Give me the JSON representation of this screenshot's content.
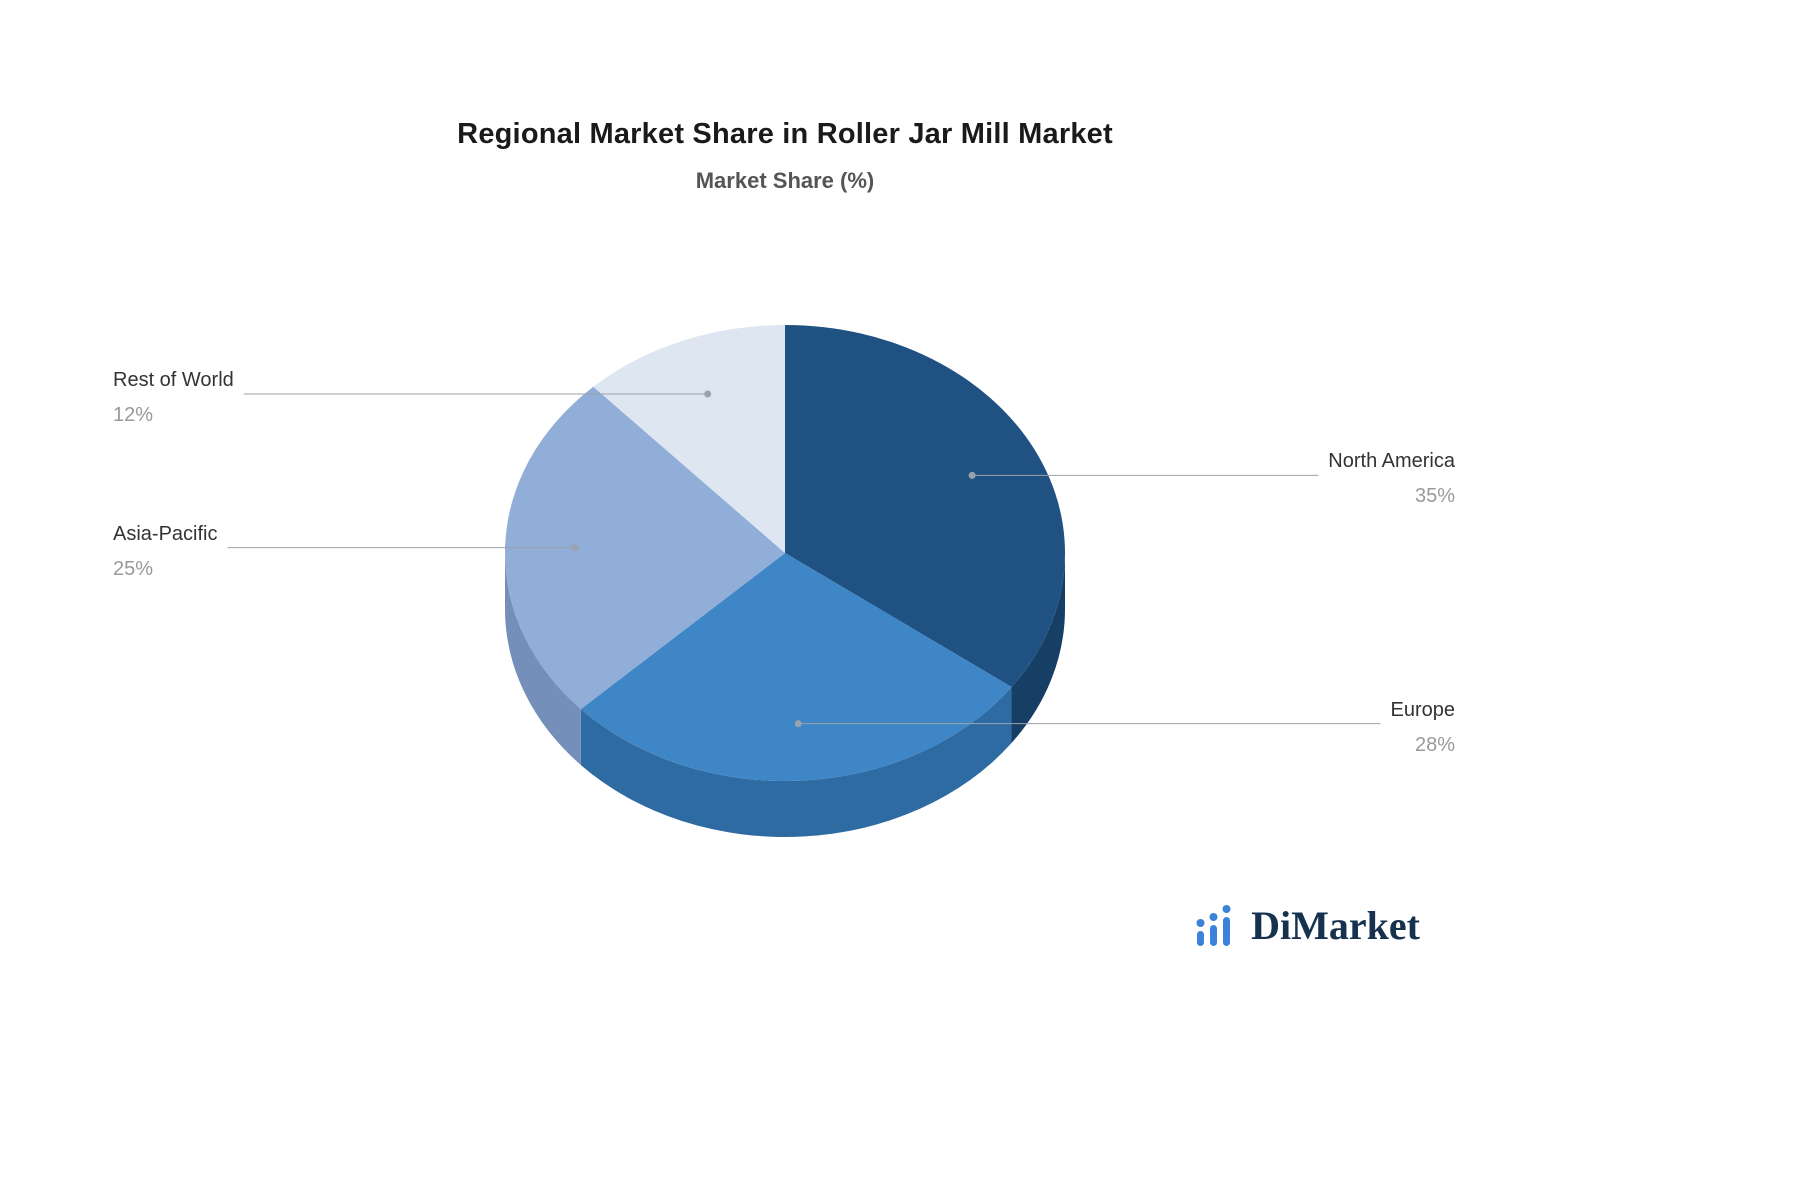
{
  "chart_data": {
    "type": "pie",
    "style": "3d",
    "title": "Regional Market Share in Roller Jar Mill Market",
    "subtitle": "Market Share (%)",
    "unit": "%",
    "start_angle_deg": 0,
    "direction": "clockwise",
    "legend": "none",
    "slices": [
      {
        "label": "North America",
        "value": 35,
        "pct_label": "35%",
        "color": "#1f5182",
        "side_color": "#173e64"
      },
      {
        "label": "Europe",
        "value": 28,
        "pct_label": "28%",
        "color": "#3e86c6",
        "side_color": "#2f6ba3"
      },
      {
        "label": "Asia-Pacific",
        "value": 25,
        "pct_label": "25%",
        "color": "#91aed8",
        "side_color": "#7490ba"
      },
      {
        "label": "Rest of World",
        "value": 12,
        "pct_label": "12%",
        "color": "#dee6f1",
        "side_color": "#b9c5d8"
      }
    ],
    "title_color": "#1a1a1a",
    "subtitle_color": "#555555",
    "label_color": "#333333",
    "pct_color": "#999999",
    "line_color": "#9aa3ad"
  },
  "brand": {
    "name": "DiMarket",
    "text_color": "#16324f",
    "icon_color": "#3b82d8",
    "icon": "bar-chart-dots-icon"
  }
}
